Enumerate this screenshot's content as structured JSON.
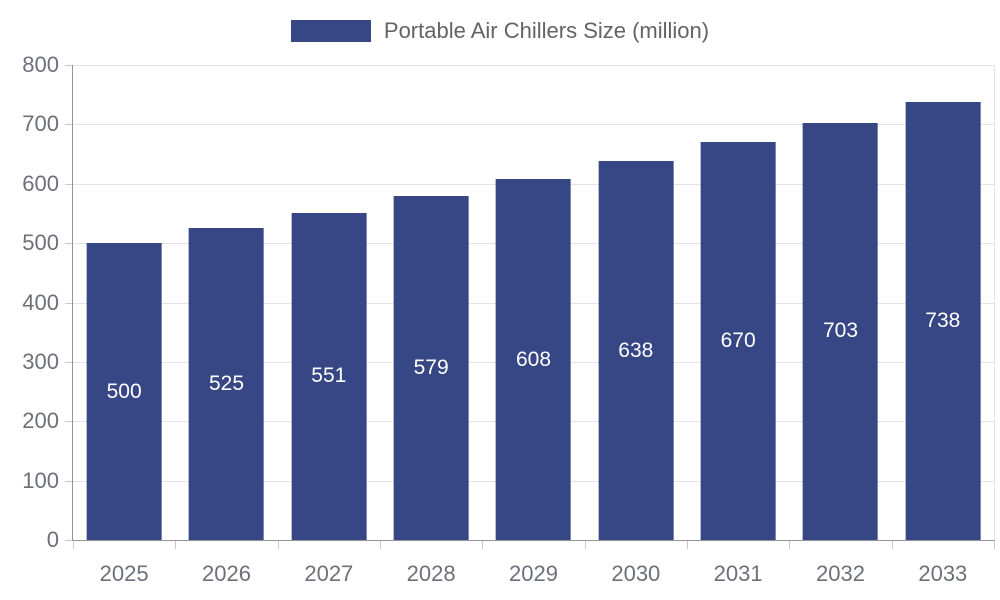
{
  "chart_data": {
    "type": "bar",
    "legend": "Portable Air Chillers Size (million)",
    "categories": [
      "2025",
      "2026",
      "2027",
      "2028",
      "2029",
      "2030",
      "2031",
      "2032",
      "2033"
    ],
    "values": [
      500,
      525,
      551,
      579,
      608,
      638,
      670,
      703,
      738
    ],
    "value_labels": [
      "500",
      "525",
      "551",
      "579",
      "608",
      "638",
      "670",
      "703",
      "738"
    ],
    "ylim": [
      0,
      800
    ],
    "yticks": [
      0,
      100,
      200,
      300,
      400,
      500,
      600,
      700,
      800
    ],
    "grid": true,
    "legend_position": "top-center",
    "colors": {
      "bar": "#374785",
      "grid": "#e0e3ea",
      "axis_line": "#919599",
      "tick": "#c6c9cc",
      "axis_text": "#6e7079",
      "legend_text": "#636363",
      "bar_label": "#ffffff"
    }
  }
}
